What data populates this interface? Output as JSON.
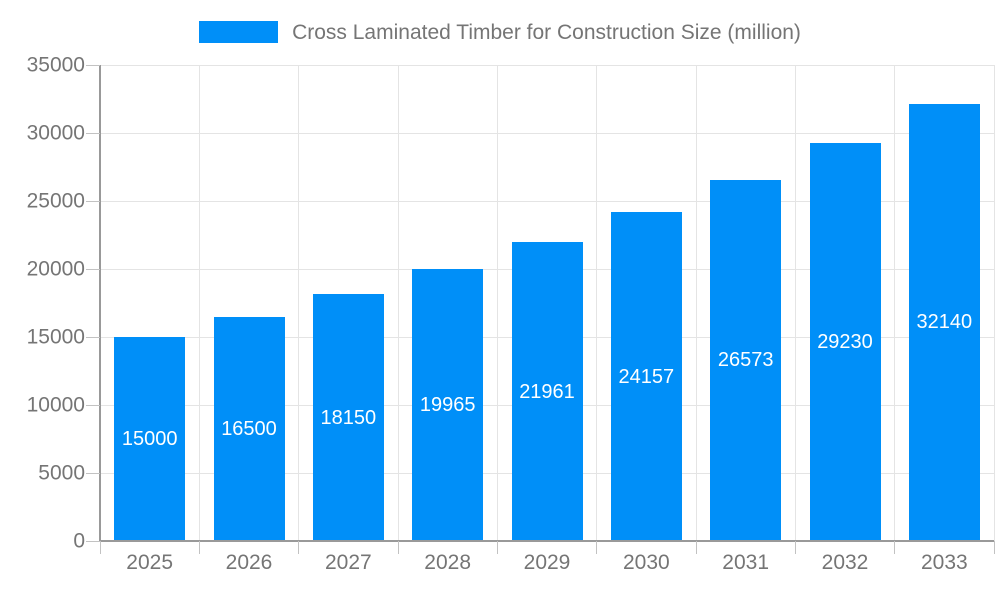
{
  "chart_data": {
    "type": "bar",
    "title": "Cross Laminated Timber for Construction Size (million)",
    "categories": [
      "2025",
      "2026",
      "2027",
      "2028",
      "2029",
      "2030",
      "2031",
      "2032",
      "2033"
    ],
    "values": [
      15000,
      16500,
      18150,
      19965,
      21961,
      24157,
      26573,
      29230,
      32140
    ],
    "xlabel": "",
    "ylabel": "",
    "ylim": [
      0,
      35000
    ],
    "ytick_step": 5000,
    "yticks": [
      0,
      5000,
      10000,
      15000,
      20000,
      25000,
      30000,
      35000
    ],
    "grid": true,
    "legend_position": "top",
    "colors": {
      "bar": "#008FF8",
      "bar_value_label": "#FFFFFF",
      "axis_text": "#757575",
      "axis_line": "#999999",
      "tick_mark": "#C2C2C2",
      "gridline": "#E4E4E4",
      "background": "#FFFFFF"
    }
  }
}
